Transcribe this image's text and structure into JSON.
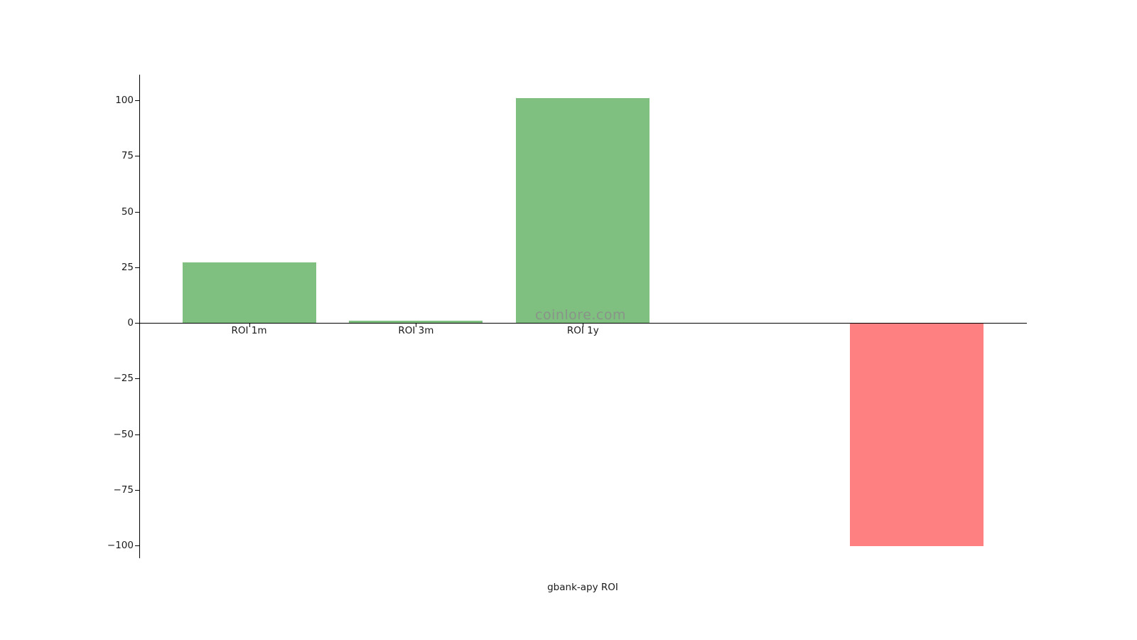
{
  "watermark": "coinlore.com",
  "colors": {
    "positive_bar": "#7FBF7F",
    "negative_bar": "#FF8080",
    "axis": "#000000",
    "tick_text": "#1a1a1a",
    "watermark_text": "#8c8c8c"
  },
  "chart_data": {
    "type": "bar",
    "title": "",
    "xlabel": "gbank-apy ROI",
    "ylabel": "",
    "categories": [
      "ROI 1m",
      "ROI 3m",
      "ROI 1y",
      "",
      ""
    ],
    "values": [
      27,
      1.1,
      101,
      null,
      -100
    ],
    "yticks": [
      100,
      75,
      50,
      25,
      0,
      -25,
      -50,
      -75,
      -100
    ],
    "ylim": [
      -105,
      112
    ],
    "grid": false,
    "legend": null,
    "notes": "positive bars green, negative bar red; 4th slot empty; red bar has no visible category label; watermark overlaid at axis center"
  }
}
